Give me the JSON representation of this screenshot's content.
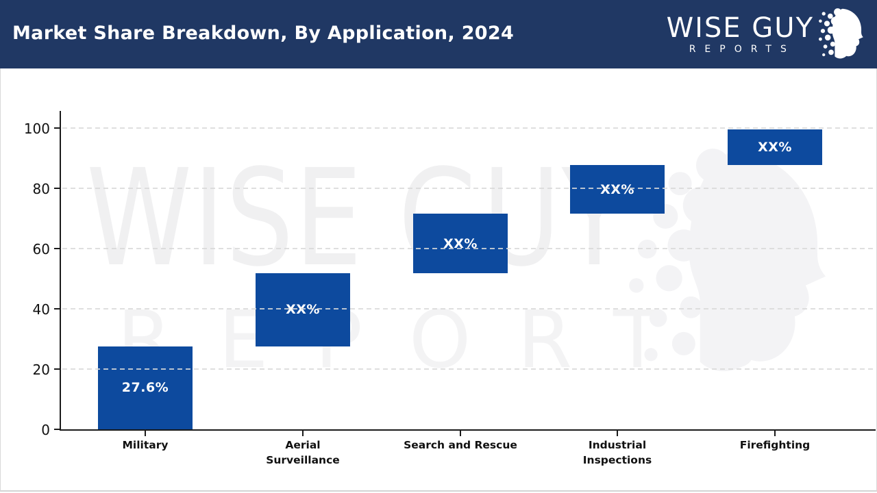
{
  "header": {
    "title": "Market Share Breakdown, By Application, 2024",
    "logo": {
      "brand": "WISE GUY",
      "sub": "REPORTS"
    }
  },
  "watermark": {
    "brand": "WISE GUY",
    "sub": "REPORTS"
  },
  "colors": {
    "header_bg": "#203864",
    "bar": "#0d4a9e",
    "axis": "#1a1a1a",
    "grid": "#d9d9d9",
    "bar_label_text": "#ffffff",
    "watermark": "#f0f0f1"
  },
  "chart_data": {
    "type": "bar",
    "subtype": "floating-waterfall",
    "title": "Market Share Breakdown, By Application, 2024",
    "categories": [
      "Military",
      "Aerial\nSurveillance",
      "Search and Rescue",
      "Industrial\nInspections",
      "Firefighting"
    ],
    "series": [
      {
        "name": "Market share (%)",
        "segments": [
          {
            "category": "Military",
            "start": 0,
            "end": 27.6,
            "label": "27.6%"
          },
          {
            "category": "Aerial Surveillance",
            "start": 27.6,
            "end": 51.8,
            "label": "XX%"
          },
          {
            "category": "Search and Rescue",
            "start": 51.8,
            "end": 71.5,
            "label": "XX%"
          },
          {
            "category": "Industrial Inspections",
            "start": 71.5,
            "end": 87.8,
            "label": "XX%"
          },
          {
            "category": "Firefighting",
            "start": 87.8,
            "end": 99.5,
            "label": "XX%"
          }
        ]
      }
    ],
    "y_ticks": [
      0,
      20,
      40,
      60,
      80,
      100
    ],
    "ylim": [
      0,
      105.7
    ],
    "grid": "horizontal-dashed",
    "legend": "none"
  }
}
